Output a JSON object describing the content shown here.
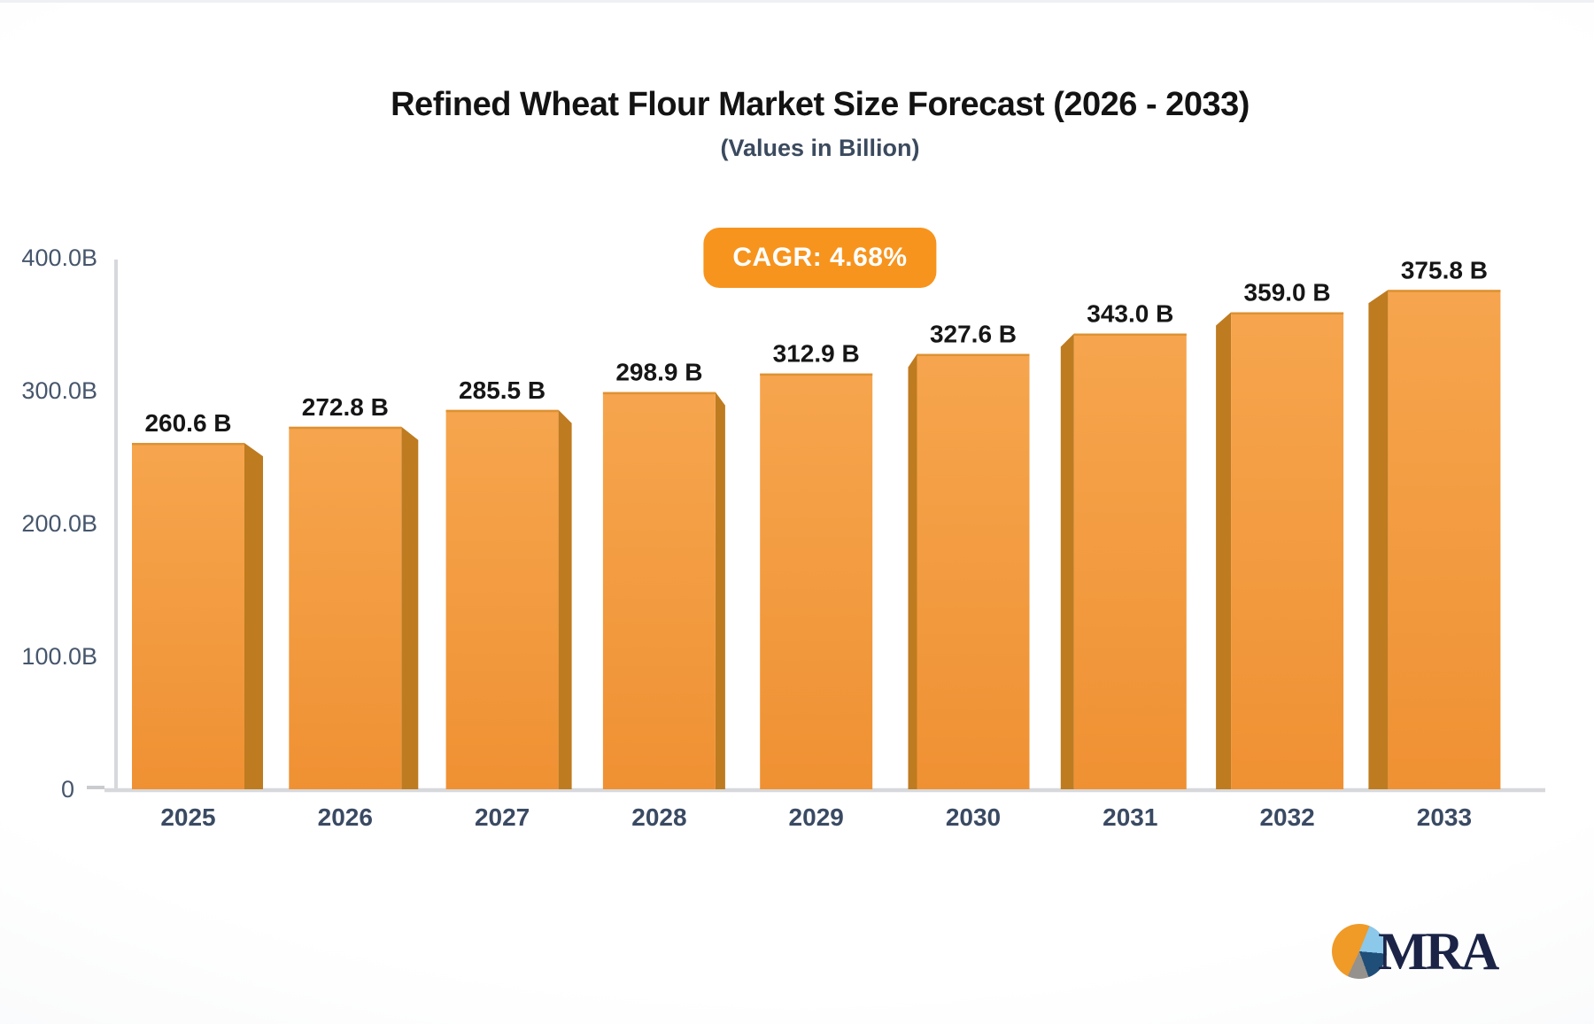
{
  "chart_data": {
    "type": "bar",
    "title": "Refined Wheat Flour Market Size Forecast (2026 - 2033)",
    "subtitle": "(Values in Billion)",
    "cagr_label": "CAGR: 4.68%",
    "categories": [
      "2025",
      "2026",
      "2027",
      "2028",
      "2029",
      "2030",
      "2031",
      "2032",
      "2033"
    ],
    "values": [
      260.6,
      272.8,
      285.5,
      298.9,
      312.9,
      327.6,
      343.0,
      359.0,
      375.8
    ],
    "value_labels": [
      "260.6 B",
      "272.8 B",
      "285.5 B",
      "298.9 B",
      "312.9 B",
      "327.6 B",
      "343.0 B",
      "359.0 B",
      "375.8 B"
    ],
    "xlabel": "",
    "ylabel": "",
    "ylim": [
      0,
      400
    ],
    "y_ticks": [
      {
        "value": 400,
        "label": "400.0B"
      },
      {
        "value": 300,
        "label": "300.0B"
      },
      {
        "value": 200,
        "label": "200.0B"
      },
      {
        "value": 100,
        "label": "100.0B"
      },
      {
        "value": 0,
        "label": "0"
      }
    ],
    "grid": "off",
    "legend": "none",
    "bar_style": "3d-perspective-center"
  },
  "colors": {
    "bar_face_top": "#F6A54E",
    "bar_face_bottom": "#EF9133",
    "bar_side": "#BE7B20",
    "bar_top_edge": "#DD9232",
    "axis_line": "#D7D8DC",
    "zero_tick": "#C9CBD0",
    "tick_text": "#46566C",
    "xlabel_text": "#3A4A63",
    "value_text": "#161616",
    "title_text": "#131313",
    "subtitle_text": "#3B4A5E",
    "badge_bg": "#F7941E",
    "badge_text": "#FFFFFF",
    "logo_navy": "#1B2447",
    "logo_orange": "#F09A28",
    "logo_blue": "#8CC8EA",
    "logo_dark_blue": "#1F4E79",
    "logo_gray": "#95918C"
  },
  "logo": {
    "text": "MRA",
    "icon": "pie-chart-icon"
  }
}
